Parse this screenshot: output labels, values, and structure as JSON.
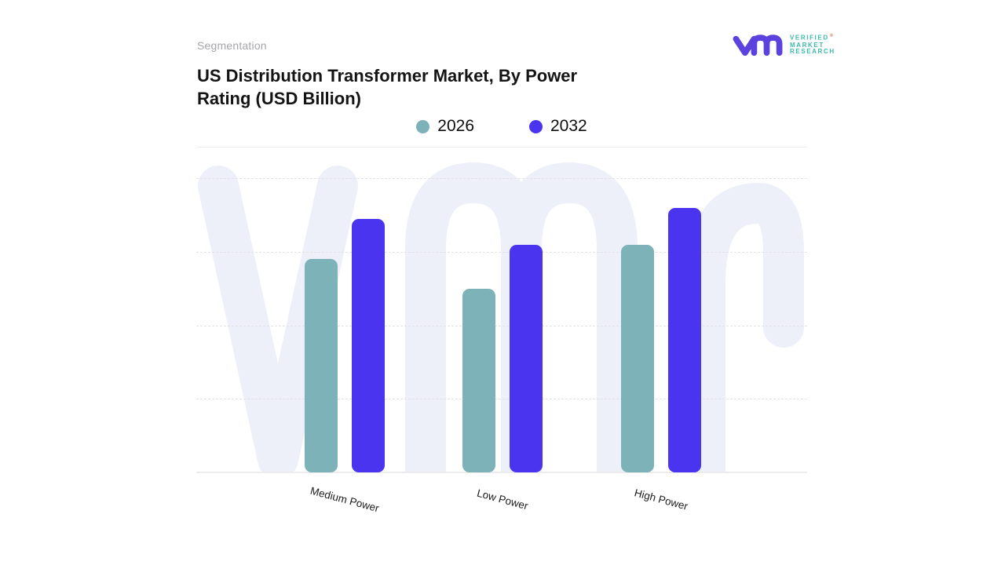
{
  "header": {
    "eyebrow": "Segmentation",
    "title": "US Distribution Transformer Market, By Power Rating (USD Billion)"
  },
  "logo": {
    "lines": [
      "VERIFIED",
      "MARKET",
      "RESEARCH"
    ],
    "registered_mark": "®",
    "colors": {
      "monogram": "#5b41dd",
      "text": "#3ab9ac",
      "mark": "#e0795a"
    }
  },
  "chart_data": {
    "type": "bar",
    "title": "US Distribution Transformer Market, By Power Rating (USD Billion)",
    "unit": "USD Billion",
    "categories": [
      "Medium Power",
      "Low Power",
      "High Power"
    ],
    "series": [
      {
        "name": "2026",
        "color": "#7db2b9",
        "values": [
          2.9,
          2.5,
          3.1
        ]
      },
      {
        "name": "2032",
        "color": "#4b34f0",
        "values": [
          3.45,
          3.1,
          3.6
        ]
      }
    ],
    "y_axis": {
      "tick_labels_visible": false,
      "gridline_count": 4,
      "estimated_max": 4.44
    },
    "ylim": [
      0,
      4.44
    ],
    "x_tick_rotation_deg": 15,
    "legend_position": "top-center",
    "grid": "horizontal-dashed",
    "background_watermark": "vmr-logo"
  },
  "colors": {
    "watermark": "#edf0f8",
    "gridline": "#e2e2e7",
    "baseline": "#ececec",
    "divider": "#ededed",
    "title_text": "#141414",
    "eyebrow_text": "#a6a6ab",
    "axis_label_text": "#1c1c1c"
  }
}
